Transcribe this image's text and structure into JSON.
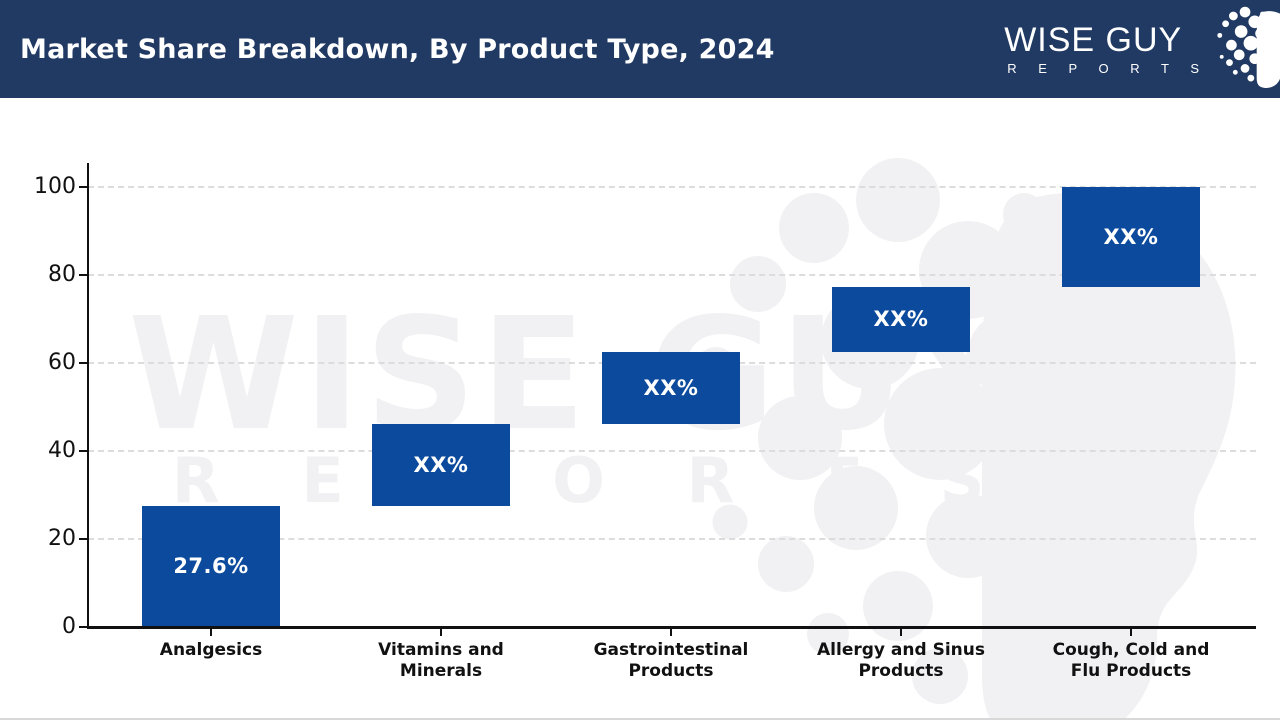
{
  "header": {
    "title": "Market Share Breakdown, By Product Type, 2024",
    "logo": {
      "line1": "WISE GUY",
      "line2": "R E P O R T S"
    }
  },
  "watermark": {
    "line1": "WISE GUY",
    "line2": "R E P O R T S"
  },
  "chart_data": {
    "type": "bar",
    "subtype": "waterfall",
    "title": "Market Share Breakdown, By Product Type, 2024",
    "categories": [
      "Analgesics",
      "Vitamins and Minerals",
      "Gastrointestinal Products",
      "Allergy and Sinus Products",
      "Cough, Cold and Flu Products"
    ],
    "category_lines": [
      [
        "Analgesics"
      ],
      [
        "Vitamins and",
        "Minerals"
      ],
      [
        "Gastrointestinal",
        "Products"
      ],
      [
        "Allergy and Sinus",
        "Products"
      ],
      [
        "Cough, Cold and",
        "Flu Products"
      ]
    ],
    "segments": [
      {
        "category": "Analgesics",
        "start": 0,
        "end": 27.6,
        "label": "27.6%"
      },
      {
        "category": "Vitamins and Minerals",
        "start": 27.6,
        "end": 46.2,
        "label": "XX%"
      },
      {
        "category": "Gastrointestinal Products",
        "start": 46.2,
        "end": 62.5,
        "label": "XX%"
      },
      {
        "category": "Allergy and Sinus Products",
        "start": 62.5,
        "end": 77.3,
        "label": "XX%"
      },
      {
        "category": "Cough, Cold and Flu Products",
        "start": 77.3,
        "end": 100,
        "label": "XX%"
      }
    ],
    "yticks": [
      0,
      20,
      40,
      60,
      80,
      100
    ],
    "ylim": [
      0,
      105
    ],
    "xlabel": "",
    "ylabel": "",
    "grid": true,
    "legend": false,
    "bar_color": "#0b4a9c",
    "bar_label_color": "#ffffff",
    "axis_color": "#111111",
    "grid_color": "#dcdcdc"
  }
}
